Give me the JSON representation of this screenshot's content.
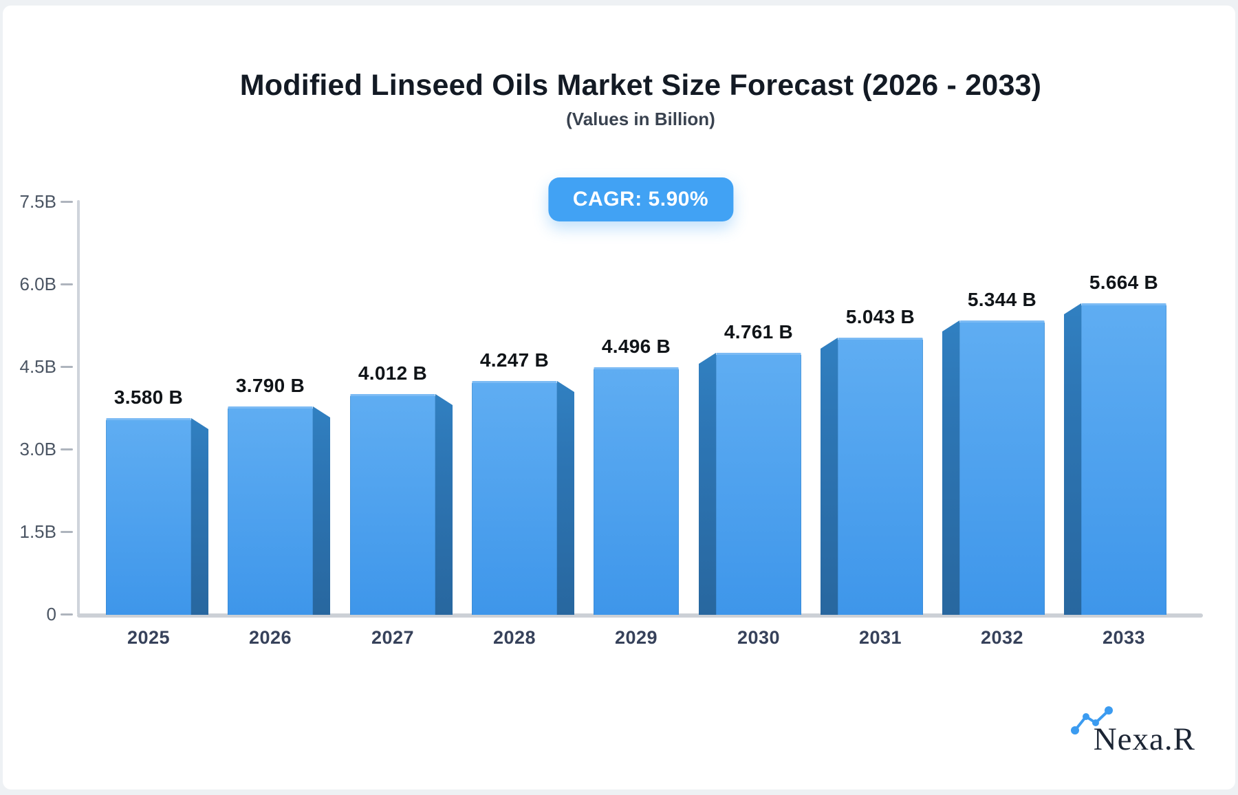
{
  "header": {
    "title": "Modified Linseed Oils Market Size Forecast (2026 - 2033)",
    "subtitle": "(Values in Billion)",
    "cagr_badge": "CAGR: 5.90%"
  },
  "brand": {
    "name": "Nexa.R",
    "icon": "line-chart-logo-icon"
  },
  "colors": {
    "accent_blue": "#41a2f4",
    "bar_face_top": "#5fadf2",
    "bar_face_bottom": "#3e96ea",
    "bar_side": "#2d76b5",
    "axis_gray": "#ccd0d6",
    "badge_text": "#ffffff"
  },
  "chart_data": {
    "type": "bar",
    "title": "Modified Linseed Oils Market Size Forecast (2026 - 2033)",
    "subtitle": "(Values in Billion)",
    "units": "Billion",
    "cagr": "5.90%",
    "categories": [
      "2025",
      "2026",
      "2027",
      "2028",
      "2029",
      "2030",
      "2031",
      "2032",
      "2033"
    ],
    "values": [
      3.58,
      3.79,
      4.012,
      4.247,
      4.496,
      4.761,
      5.043,
      5.344,
      5.664
    ],
    "value_labels": [
      "3.580 B",
      "3.790 B",
      "4.012 B",
      "4.247 B",
      "4.496 B",
      "4.761 B",
      "5.043 B",
      "5.344 B",
      "5.664 B"
    ],
    "xlabel": "",
    "ylabel": "",
    "ylim": [
      0,
      7.5
    ],
    "yticks": [
      {
        "value": 7.5,
        "label": "7.5B"
      },
      {
        "value": 6.0,
        "label": "6.0B"
      },
      {
        "value": 4.5,
        "label": "4.5B"
      },
      {
        "value": 3.0,
        "label": "3.0B"
      },
      {
        "value": 1.5,
        "label": "1.5B"
      },
      {
        "value": 0,
        "label": "0"
      }
    ],
    "grid": false,
    "legend": "none",
    "bar_style": "3d-beveled"
  }
}
